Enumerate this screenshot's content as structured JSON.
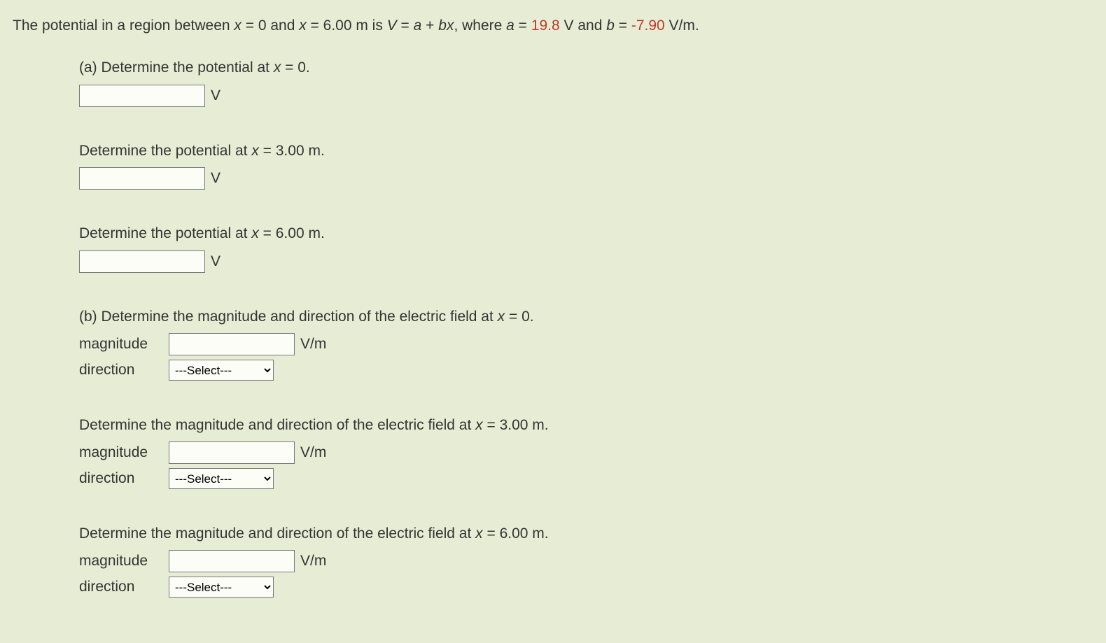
{
  "background_color": "#e7edd5",
  "text_color": "#333333",
  "highlight_color": "#c0392b",
  "intro": {
    "prefix": "The potential in a region between ",
    "x0": "x",
    "eq0": " = 0 and ",
    "x1": "x",
    "eq1": " = 6.00 m is ",
    "V": "V",
    "eq2": " = ",
    "a1": "a",
    "plus": " + ",
    "b1": "bx",
    "where": ", where ",
    "a2": "a",
    "eq3": " = ",
    "aval": "19.8",
    "vunit": " V and ",
    "b2": "b",
    "eq4": " = ",
    "bval": "-7.90",
    "bunit": " V/m."
  },
  "partA": {
    "q1": "(a) Determine the potential at ",
    "x1": "x",
    "q1b": " = 0.",
    "unit1": "V",
    "q2a": "Determine the potential at ",
    "x2": "x",
    "q2b": " = 3.00 m.",
    "unit2": "V",
    "q3a": "Determine the potential at ",
    "x3": "x",
    "q3b": " = 6.00 m.",
    "unit3": "V"
  },
  "partB": {
    "q1": "(b) Determine the magnitude and direction of the electric field at ",
    "x1": "x",
    "q1b": " = 0.",
    "q2": "Determine the magnitude and direction of the electric field at ",
    "x2": "x",
    "q2b": " = 3.00 m.",
    "q3": "Determine the magnitude and direction of the electric field at ",
    "x3": "x",
    "q3b": " = 6.00 m.",
    "mag_label": "magnitude",
    "dir_label": "direction",
    "mag_unit": "V/m",
    "select_placeholder": "---Select---"
  }
}
